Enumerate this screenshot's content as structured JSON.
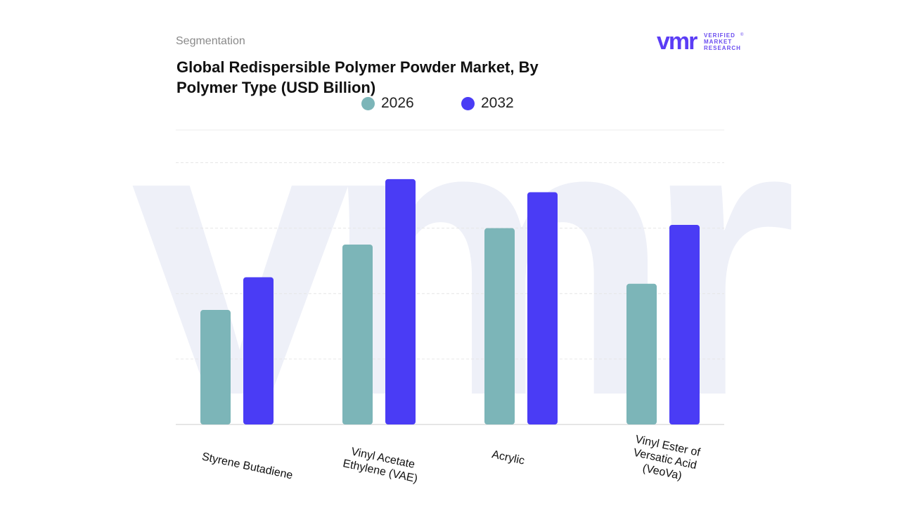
{
  "header": {
    "segment": "Segmentation",
    "title": "Global Redispersible Polymer Powder Market, By Polymer Type (USD Billion)"
  },
  "logo": {
    "mark": "vmr",
    "line1": "VERIFIED",
    "line2": "MARKET",
    "line3": "RESEARCH",
    "registered": "®"
  },
  "colors": {
    "series_2026": "#7cb5b8",
    "series_2032": "#4a3cf5",
    "gridline": "#e6e6e6",
    "watermark": "#eef0f8",
    "logo_accent": "#5b3df5",
    "logo_text": "#6a4cf0"
  },
  "chart_data": {
    "type": "bar",
    "title": "Global Redispersible Polymer Powder Market, By Polymer Type (USD Billion)",
    "categories": [
      "Styrene Butadiene",
      "Vinyl Acetate Ethylene (VAE)",
      "Acrylic",
      "Vinyl Ester of Versatic Acid (VeoVa)"
    ],
    "category_lines": [
      [
        "Styrene Butadiene"
      ],
      [
        "Vinyl Acetate",
        "Ethylene (VAE)"
      ],
      [
        "Acrylic"
      ],
      [
        "Vinyl Ester of",
        "Versatic Acid",
        "(VeoVa)"
      ]
    ],
    "series": [
      {
        "name": "2026",
        "values": [
          1.75,
          2.75,
          3.0,
          2.15
        ]
      },
      {
        "name": "2032",
        "values": [
          2.25,
          3.75,
          3.55,
          3.05
        ]
      }
    ],
    "ylim": [
      0,
      4.5
    ],
    "y_axis_labels_shown": false,
    "grid": true,
    "legend_position": "top-center",
    "xlabel": "",
    "ylabel": ""
  }
}
